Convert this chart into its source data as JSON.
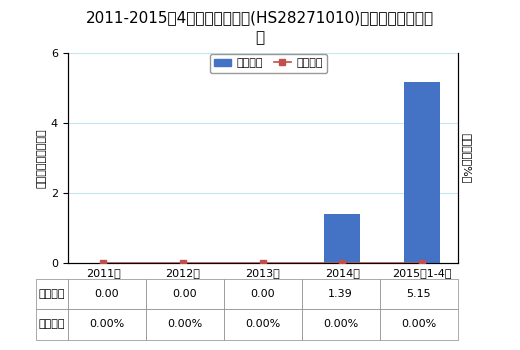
{
  "title_line1": "2011-2015年4月肥料用氯化锨(HS28271010)进口总额及增速统",
  "title_line2": "计",
  "x_labels": [
    "2011年",
    "2012年",
    "2013年",
    "2014年",
    "2015年1-4月"
  ],
  "bar_values": [
    0.0,
    0.0,
    0.0,
    1.39,
    5.15
  ],
  "line_values": [
    0.0,
    0.0,
    0.0,
    0.0,
    0.0
  ],
  "bar_color": "#4472C4",
  "line_color": "#C0504D",
  "ylabel_left": "进口金额（万美元）",
  "ylabel_right": "同比增长（%）",
  "ylim_left": [
    0,
    6.0
  ],
  "ylim_right": [
    0,
    6.0
  ],
  "yticks_left": [
    0.0,
    2.0,
    4.0,
    6.0
  ],
  "legend_bar": "进口金额",
  "legend_line": "同比增长",
  "table_row1_label": "进口金额",
  "table_row2_label": "同比增长",
  "table_row1_values": [
    "0.00",
    "0.00",
    "0.00",
    "1.39",
    "5.15"
  ],
  "table_row2_values": [
    "0.00%",
    "0.00%",
    "0.00%",
    "0.00%",
    "0.00%"
  ],
  "bg_color": "#FFFFFF",
  "plot_bg_color": "#FFFFFF",
  "grid_color": "#C5E5F0",
  "title_fontsize": 11,
  "axis_label_fontsize": 8,
  "tick_fontsize": 8,
  "table_fontsize": 8,
  "legend_fontsize": 8
}
